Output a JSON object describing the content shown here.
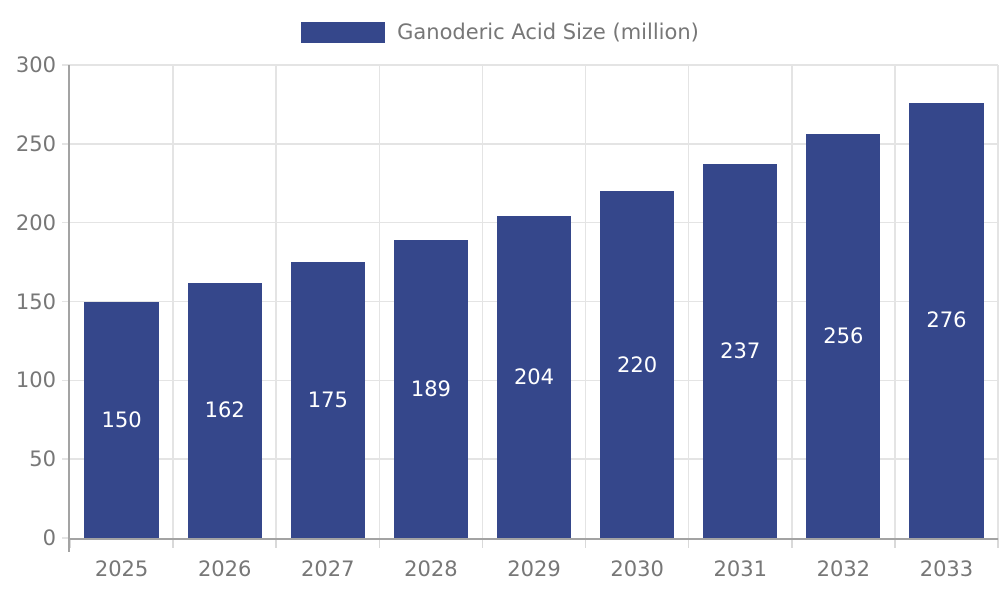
{
  "chart_data": {
    "type": "bar",
    "title": "",
    "categories": [
      "2025",
      "2026",
      "2027",
      "2028",
      "2029",
      "2030",
      "2031",
      "2032",
      "2033"
    ],
    "series": [
      {
        "name": "Ganoderic Acid Size (million)",
        "values": [
          150,
          162,
          175,
          189,
          204,
          220,
          237,
          256,
          276
        ]
      }
    ],
    "xlabel": "",
    "ylabel": "",
    "ylim": [
      0,
      300
    ],
    "yticks": [
      0,
      50,
      100,
      150,
      200,
      250,
      300
    ],
    "grid": true,
    "legend_position": "top",
    "bar_value_labels": "inside-center",
    "colors": {
      "bar": "#35478b",
      "bar_label": "#ffffff",
      "axis_text": "#777777",
      "legend_text": "#777777",
      "gridline": "#e4e4e4",
      "tick": "#d9d9d9",
      "axis_line": "#a3a3a3",
      "background": "#ffffff"
    }
  }
}
